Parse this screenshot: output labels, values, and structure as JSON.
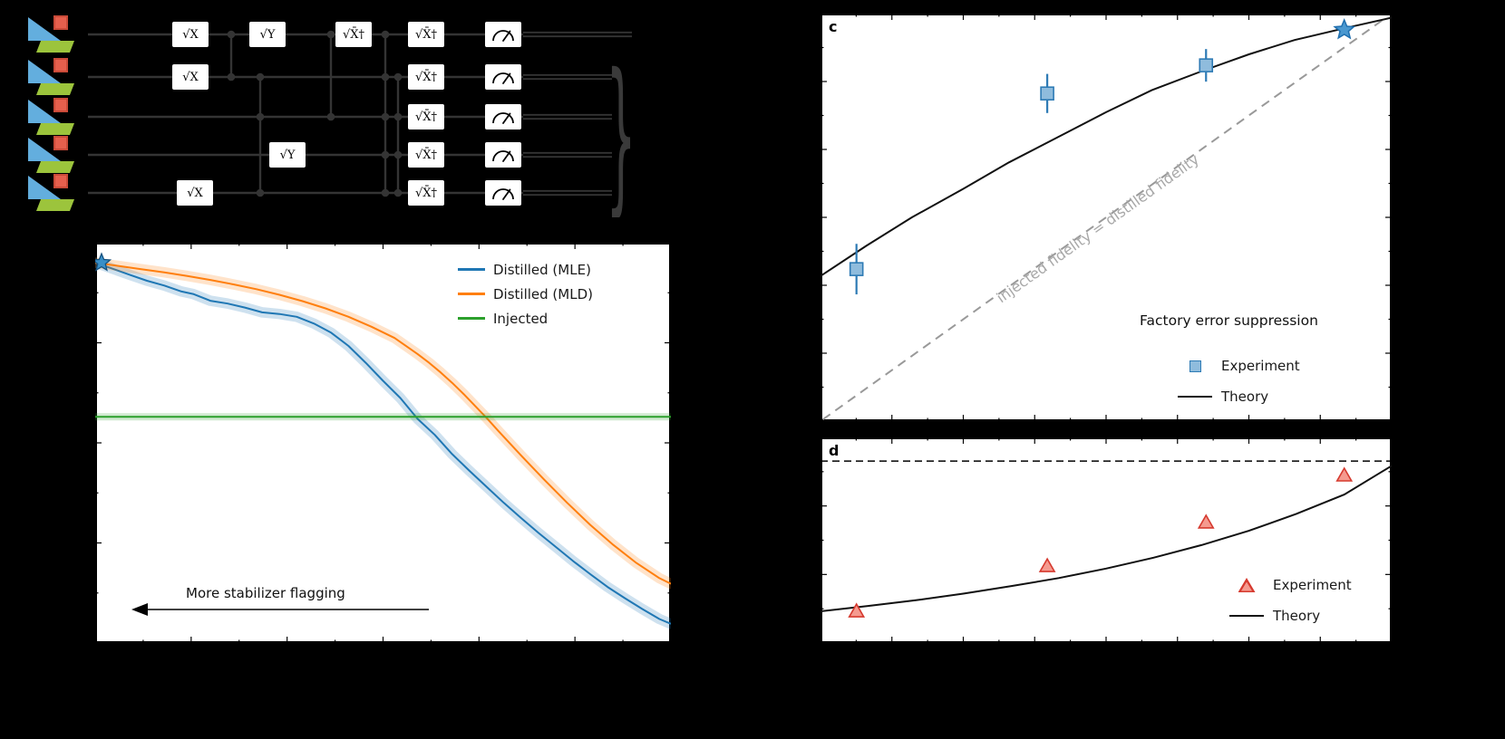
{
  "circuit": {
    "qubit_count": 5,
    "brace": "}",
    "gate_labels": {
      "sqrt_x": "√X",
      "sqrt_y": "√Y",
      "sqrt_x_dagger": "√X̄†"
    }
  },
  "chart_data": [
    {
      "id": "panel_b",
      "type": "line",
      "legend_position": "upper right",
      "axes_note": "tick marks only, labels not visible",
      "series": [
        {
          "name": "Distilled (MLE)",
          "color": "#1f77b4",
          "band": 0.013,
          "x": [
            0,
            0.03,
            0.06,
            0.09,
            0.12,
            0.15,
            0.17,
            0.2,
            0.23,
            0.26,
            0.29,
            0.32,
            0.35,
            0.38,
            0.41,
            0.44,
            0.47,
            0.5,
            0.53,
            0.56,
            0.59,
            0.62,
            0.65,
            0.68,
            0.71,
            0.74,
            0.77,
            0.8,
            0.83,
            0.86,
            0.89,
            0.92,
            0.95,
            0.98,
            1.0
          ],
          "y": [
            0.95,
            0.935,
            0.92,
            0.905,
            0.893,
            0.878,
            0.872,
            0.855,
            0.848,
            0.838,
            0.826,
            0.822,
            0.815,
            0.798,
            0.775,
            0.742,
            0.7,
            0.655,
            0.612,
            0.56,
            0.52,
            0.472,
            0.43,
            0.39,
            0.35,
            0.312,
            0.275,
            0.24,
            0.205,
            0.172,
            0.14,
            0.112,
            0.085,
            0.06,
            0.048
          ]
        },
        {
          "name": "Distilled (MLD)",
          "color": "#ff7f0e",
          "band": 0.013,
          "x": [
            0,
            0.04,
            0.08,
            0.12,
            0.16,
            0.2,
            0.24,
            0.28,
            0.32,
            0.36,
            0.4,
            0.44,
            0.48,
            0.52,
            0.56,
            0.58,
            0.6,
            0.62,
            0.64,
            0.66,
            0.68,
            0.7,
            0.74,
            0.78,
            0.82,
            0.86,
            0.9,
            0.94,
            0.98,
            1.0
          ],
          "y": [
            0.95,
            0.942,
            0.934,
            0.926,
            0.917,
            0.907,
            0.896,
            0.884,
            0.87,
            0.854,
            0.836,
            0.815,
            0.79,
            0.762,
            0.722,
            0.7,
            0.676,
            0.65,
            0.622,
            0.592,
            0.562,
            0.53,
            0.468,
            0.408,
            0.35,
            0.295,
            0.245,
            0.2,
            0.162,
            0.148
          ]
        },
        {
          "name": "Injected",
          "color": "#2ca02c",
          "band": 0.009,
          "x": [
            0,
            1
          ],
          "y": [
            0.565,
            0.565
          ]
        }
      ],
      "start_marker": {
        "shape": "star",
        "x": 0,
        "y": 0.95,
        "color": "#3a8fc7",
        "edge": "#15517f"
      },
      "annotation": {
        "text": "More stabilizer flagging",
        "arrow_direction": "left"
      }
    },
    {
      "id": "panel_c",
      "type": "scatter",
      "label": "c",
      "annotation": "Factory error suppression",
      "identity_line": {
        "style": "dashed",
        "color": "#999999",
        "label": "injected fidelity = distilled fidelity"
      },
      "theory": {
        "color": "#111111",
        "x": [
          0,
          0.08,
          0.16,
          0.25,
          0.33,
          0.42,
          0.5,
          0.58,
          0.67,
          0.75,
          0.83,
          0.92,
          1.0
        ],
        "y": [
          0.356,
          0.43,
          0.5,
          0.57,
          0.635,
          0.7,
          0.758,
          0.812,
          0.86,
          0.9,
          0.935,
          0.965,
          0.99
        ]
      },
      "experiment": {
        "marker": "square",
        "fill": "#8fbcdd",
        "edge": "#2e7bb5",
        "points": [
          {
            "x": 0.063,
            "y": 0.373,
            "err": 0.062
          },
          {
            "x": 0.397,
            "y": 0.804,
            "err": 0.048
          },
          {
            "x": 0.675,
            "y": 0.873,
            "err": 0.04
          }
        ]
      },
      "star_marker": {
        "x": 0.917,
        "y": 0.96,
        "fill": "#4a98d0",
        "edge": "#1f6faf"
      },
      "legend": [
        "Experiment",
        "Theory"
      ]
    },
    {
      "id": "panel_d",
      "type": "scatter",
      "label": "d",
      "dashed_level": 0.885,
      "theory": {
        "color": "#111111",
        "x": [
          0,
          0.083,
          0.167,
          0.25,
          0.333,
          0.417,
          0.5,
          0.583,
          0.667,
          0.75,
          0.833,
          0.917,
          1.0
        ],
        "y": [
          0.154,
          0.18,
          0.208,
          0.24,
          0.276,
          0.316,
          0.362,
          0.415,
          0.476,
          0.546,
          0.628,
          0.722,
          0.862
        ]
      },
      "experiment": {
        "marker": "triangle",
        "fill": "#f59a8f",
        "edge": "#d63a2f",
        "points": [
          {
            "x": 0.063,
            "y": 0.154
          },
          {
            "x": 0.397,
            "y": 0.374
          },
          {
            "x": 0.675,
            "y": 0.586
          },
          {
            "x": 0.917,
            "y": 0.815
          }
        ]
      },
      "legend": [
        "Experiment",
        "Theory"
      ]
    }
  ]
}
